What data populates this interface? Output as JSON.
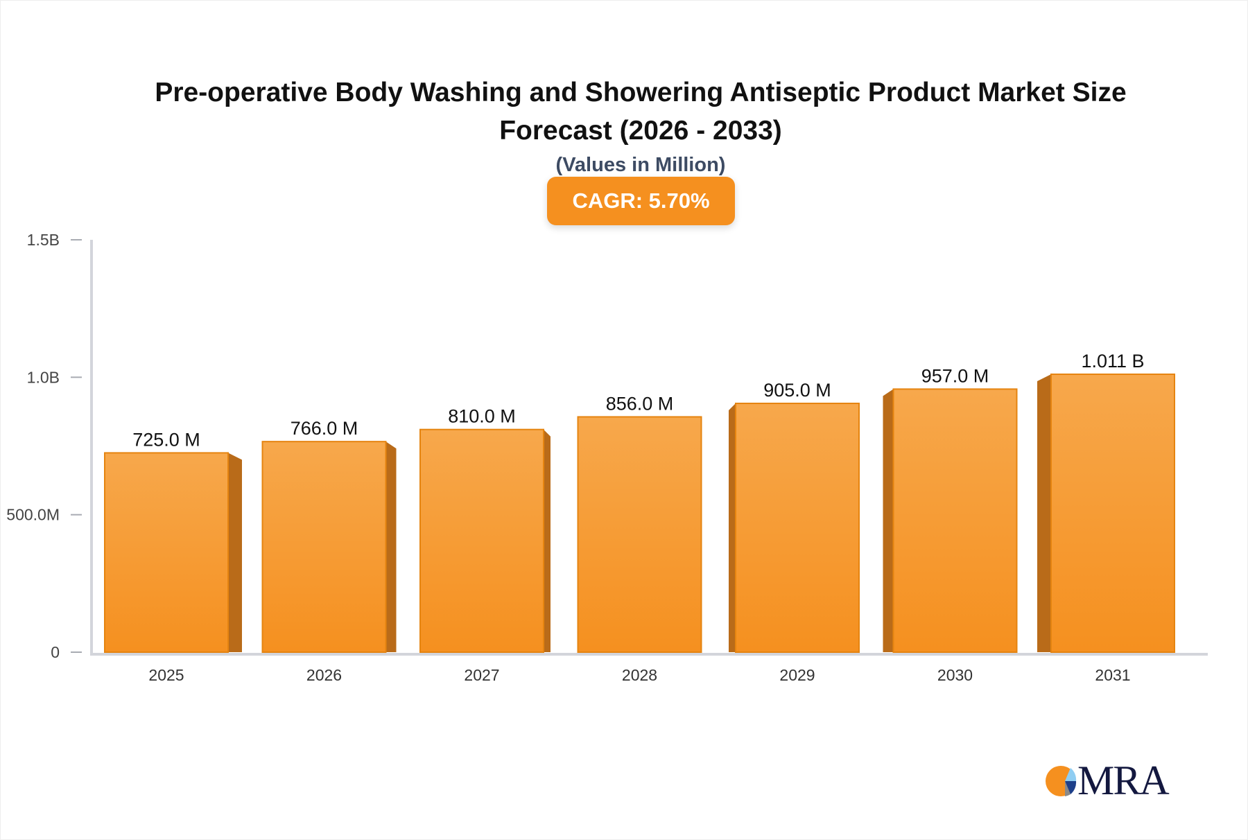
{
  "chart_data": {
    "type": "bar",
    "title": "Pre-operative Body Washing and Showering Antiseptic Product Market Size Forecast (2026 - 2033)",
    "subtitle": "(Values in Million)",
    "badge": "CAGR: 5.70%",
    "categories": [
      "2025",
      "2026",
      "2027",
      "2028",
      "2029",
      "2030",
      "2031"
    ],
    "values": [
      725.0,
      766.0,
      810.0,
      856.0,
      905.0,
      957.0,
      1011.0
    ],
    "data_labels": [
      "725.0 M",
      "766.0 M",
      "810.0 M",
      "856.0 M",
      "905.0 M",
      "957.0 M",
      "1.011 B"
    ],
    "unit": "Million",
    "ylim": [
      0,
      1500
    ],
    "yticks": [
      0,
      500,
      1000,
      1500
    ],
    "ytick_labels": [
      "0",
      "500.0M",
      "1.0B",
      "1.5B"
    ],
    "grid": false,
    "colors": {
      "bar": "#f5901f",
      "bar_top": "#f7a84c",
      "bar_side": "#b96b19",
      "badge": "#f5901f"
    }
  },
  "logo": {
    "text": "MRA"
  }
}
